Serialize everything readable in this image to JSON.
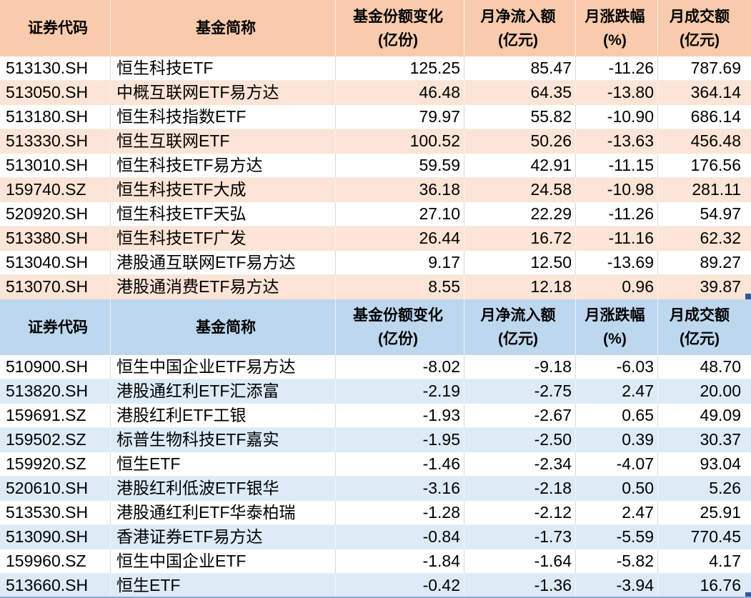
{
  "sheet": {
    "columns": [
      {
        "label": "证券代码",
        "unit": ""
      },
      {
        "label": "基金简称",
        "unit": ""
      },
      {
        "label": "基金份额变化",
        "unit": "(亿份)"
      },
      {
        "label": "月净流入额",
        "unit": "(亿元)"
      },
      {
        "label": "月涨跌幅",
        "unit": "(%)"
      },
      {
        "label": "月成交额",
        "unit": "(亿元)"
      }
    ],
    "tables": [
      {
        "name": "inflow",
        "header_bg": "#F8CBAD",
        "stripe_bg": "#FCE4D6",
        "rows": [
          [
            "513130.SH",
            "恒生科技ETF",
            "125.25",
            "85.47",
            "-11.26",
            "787.69"
          ],
          [
            "513050.SH",
            "中概互联网ETF易方达",
            "46.48",
            "64.35",
            "-13.80",
            "364.14"
          ],
          [
            "513180.SH",
            "恒生科技指数ETF",
            "79.97",
            "55.82",
            "-10.90",
            "686.14"
          ],
          [
            "513330.SH",
            "恒生互联网ETF",
            "100.52",
            "50.26",
            "-13.63",
            "456.48"
          ],
          [
            "513010.SH",
            "恒生科技ETF易方达",
            "59.59",
            "42.91",
            "-11.15",
            "176.56"
          ],
          [
            "159740.SZ",
            "恒生科技ETF大成",
            "36.18",
            "24.58",
            "-10.98",
            "281.11"
          ],
          [
            "520920.SH",
            "恒生科技ETF天弘",
            "27.10",
            "22.29",
            "-11.26",
            "54.97"
          ],
          [
            "513380.SH",
            "恒生科技ETF广发",
            "26.44",
            "16.72",
            "-11.16",
            "62.32"
          ],
          [
            "513040.SH",
            "港股通互联网ETF易方达",
            "9.17",
            "12.50",
            "-13.69",
            "89.27"
          ],
          [
            "513070.SH",
            "港股通消费ETF易方达",
            "8.55",
            "12.18",
            "0.96",
            "39.87"
          ]
        ]
      },
      {
        "name": "outflow",
        "header_bg": "#BDD7EE",
        "stripe_bg": "#DDEBF7",
        "rows": [
          [
            "510900.SH",
            "恒生中国企业ETF易方达",
            "-8.02",
            "-9.18",
            "-6.03",
            "48.70"
          ],
          [
            "513820.SH",
            "港股通红利ETF汇添富",
            "-2.19",
            "-2.75",
            "2.47",
            "20.00"
          ],
          [
            "159691.SZ",
            "港股红利ETF工银",
            "-1.93",
            "-2.67",
            "0.65",
            "49.09"
          ],
          [
            "159502.SZ",
            "标普生物科技ETF嘉实",
            "-1.95",
            "-2.50",
            "0.39",
            "30.37"
          ],
          [
            "159920.SZ",
            "恒生ETF",
            "-1.46",
            "-2.34",
            "-4.07",
            "93.04"
          ],
          [
            "520610.SH",
            "港股红利低波ETF银华",
            "-3.16",
            "-2.18",
            "0.50",
            "5.26"
          ],
          [
            "513530.SH",
            "港股通红利ETF华泰柏瑞",
            "-1.28",
            "-2.12",
            "2.47",
            "25.91"
          ],
          [
            "513090.SH",
            "香港证券ETF易方达",
            "-0.84",
            "-1.73",
            "-5.59",
            "770.45"
          ],
          [
            "159960.SZ",
            "恒生中国企业ETF",
            "-1.84",
            "-1.64",
            "-5.82",
            "4.17"
          ],
          [
            "513660.SH",
            "恒生ETF",
            "-0.42",
            "-1.36",
            "-3.94",
            "16.76"
          ]
        ]
      }
    ],
    "selection_handle_color": "#35579A",
    "selection_border_color": "#8FAADC"
  }
}
